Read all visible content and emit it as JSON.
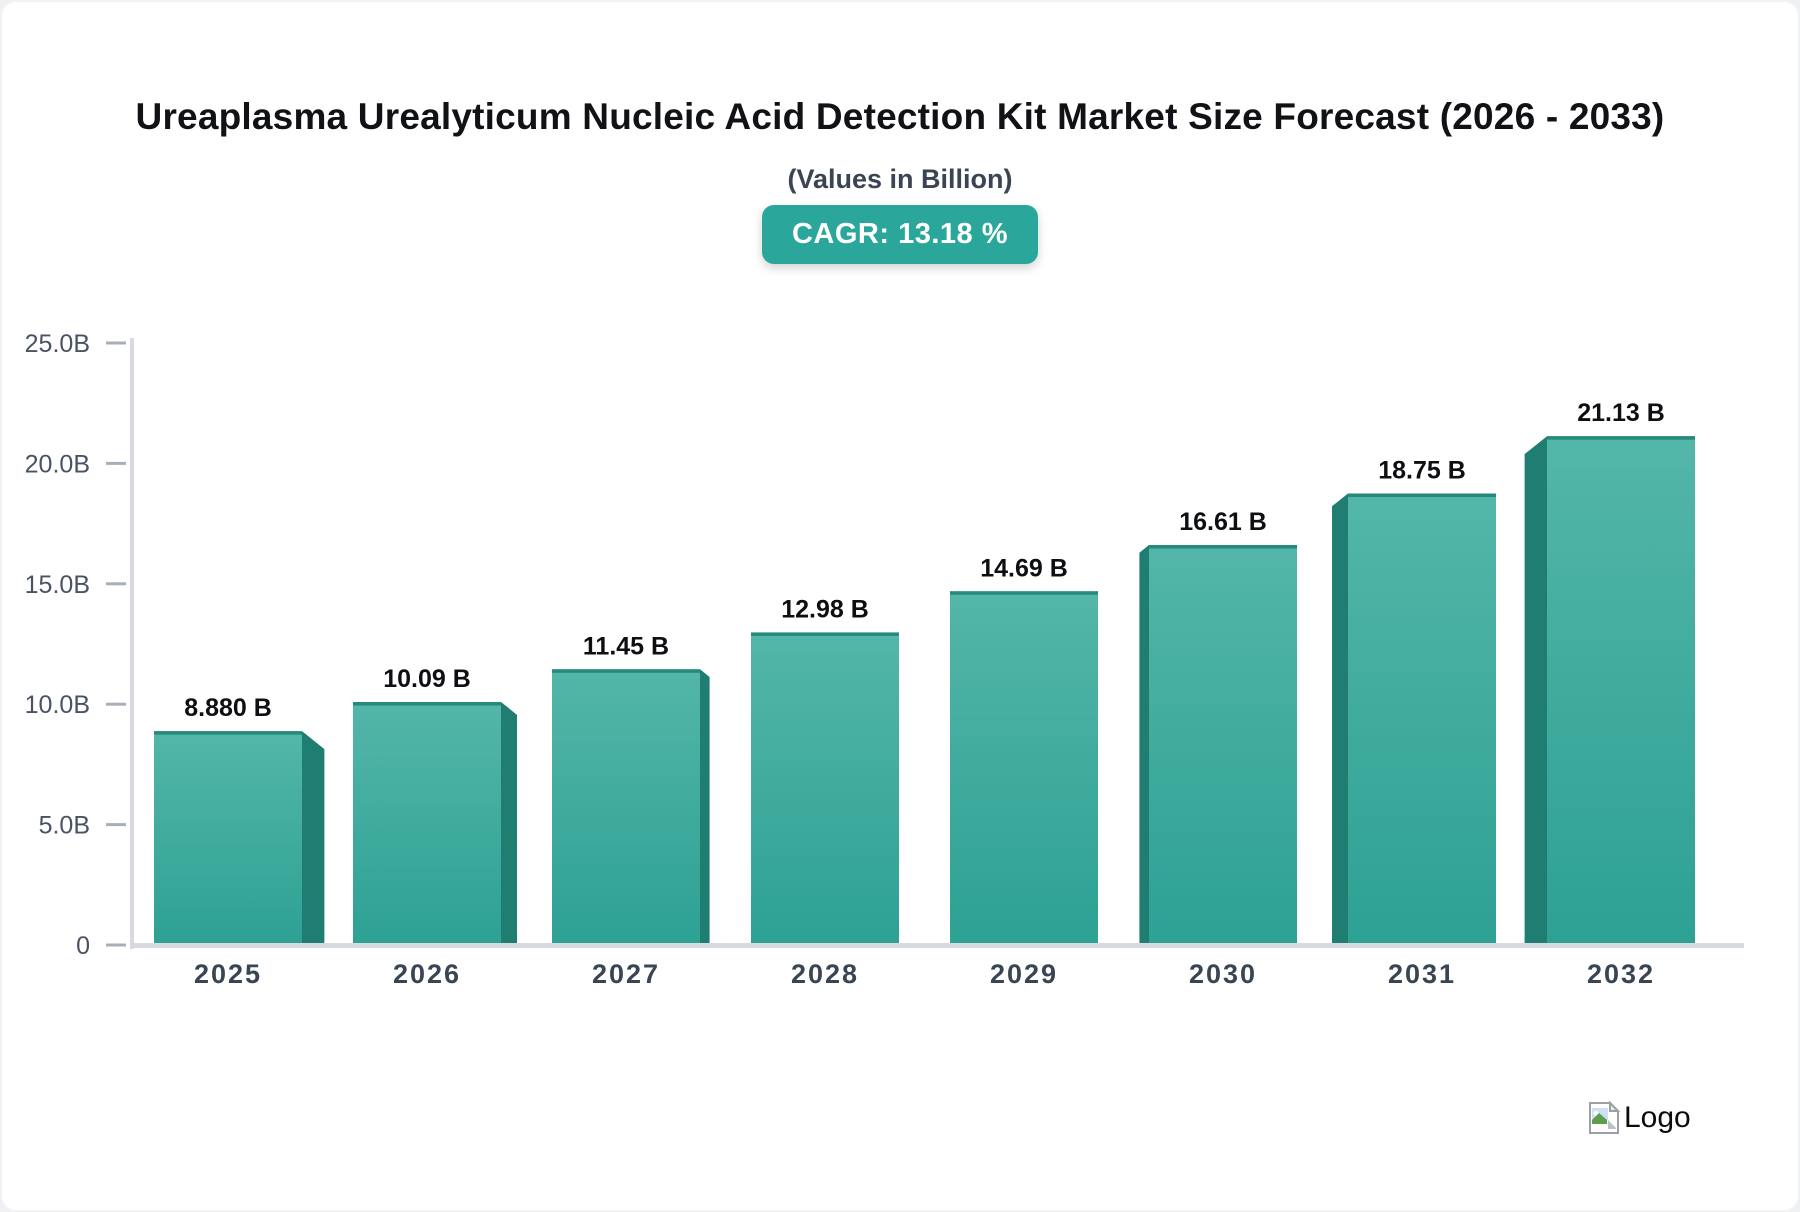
{
  "header": {
    "title": "Ureaplasma Urealyticum Nucleic Acid Detection Kit Market Size Forecast (2026 - 2033)",
    "subtitle": "(Values in Billion)",
    "cagr_badge": "CAGR: 13.18 %"
  },
  "chart_data": {
    "type": "bar",
    "title": "Ureaplasma Urealyticum Nucleic Acid Detection Kit Market Size Forecast (2026 - 2033)",
    "subtitle": "(Values in Billion)",
    "categories": [
      "2025",
      "2026",
      "2027",
      "2028",
      "2029",
      "2030",
      "2031",
      "2032"
    ],
    "values": [
      8.88,
      10.09,
      11.45,
      12.98,
      14.69,
      16.61,
      18.75,
      21.13
    ],
    "value_labels": [
      "8.880 B",
      "10.09 B",
      "11.45 B",
      "12.98 B",
      "14.69 B",
      "16.61 B",
      "18.75 B",
      "21.13 B"
    ],
    "xlabel": "",
    "ylabel": "",
    "ylim": [
      0,
      25
    ],
    "ytick_values": [
      0,
      5,
      10,
      15,
      20,
      25
    ],
    "ytick_labels": [
      "0",
      "5.0B",
      "10.0B",
      "15.0B",
      "20.0B",
      "25.0B"
    ],
    "grid": false,
    "legend": "none",
    "bar_style": "3d-extruded",
    "bar_color_top": "#53b6a8",
    "bar_color_bottom": "#2da194",
    "bar_side_color": "#1f7d71",
    "bar_top_edge_color": "#26897b"
  },
  "colors": {
    "accent": "#2aa79a",
    "axis_line": "#d7dade",
    "tick": "#a9afba",
    "ytick_text": "#4a5364",
    "xtick_text": "#3a4554",
    "value_text": "#0d0f12"
  },
  "footer": {
    "logo_text": "Logo"
  }
}
